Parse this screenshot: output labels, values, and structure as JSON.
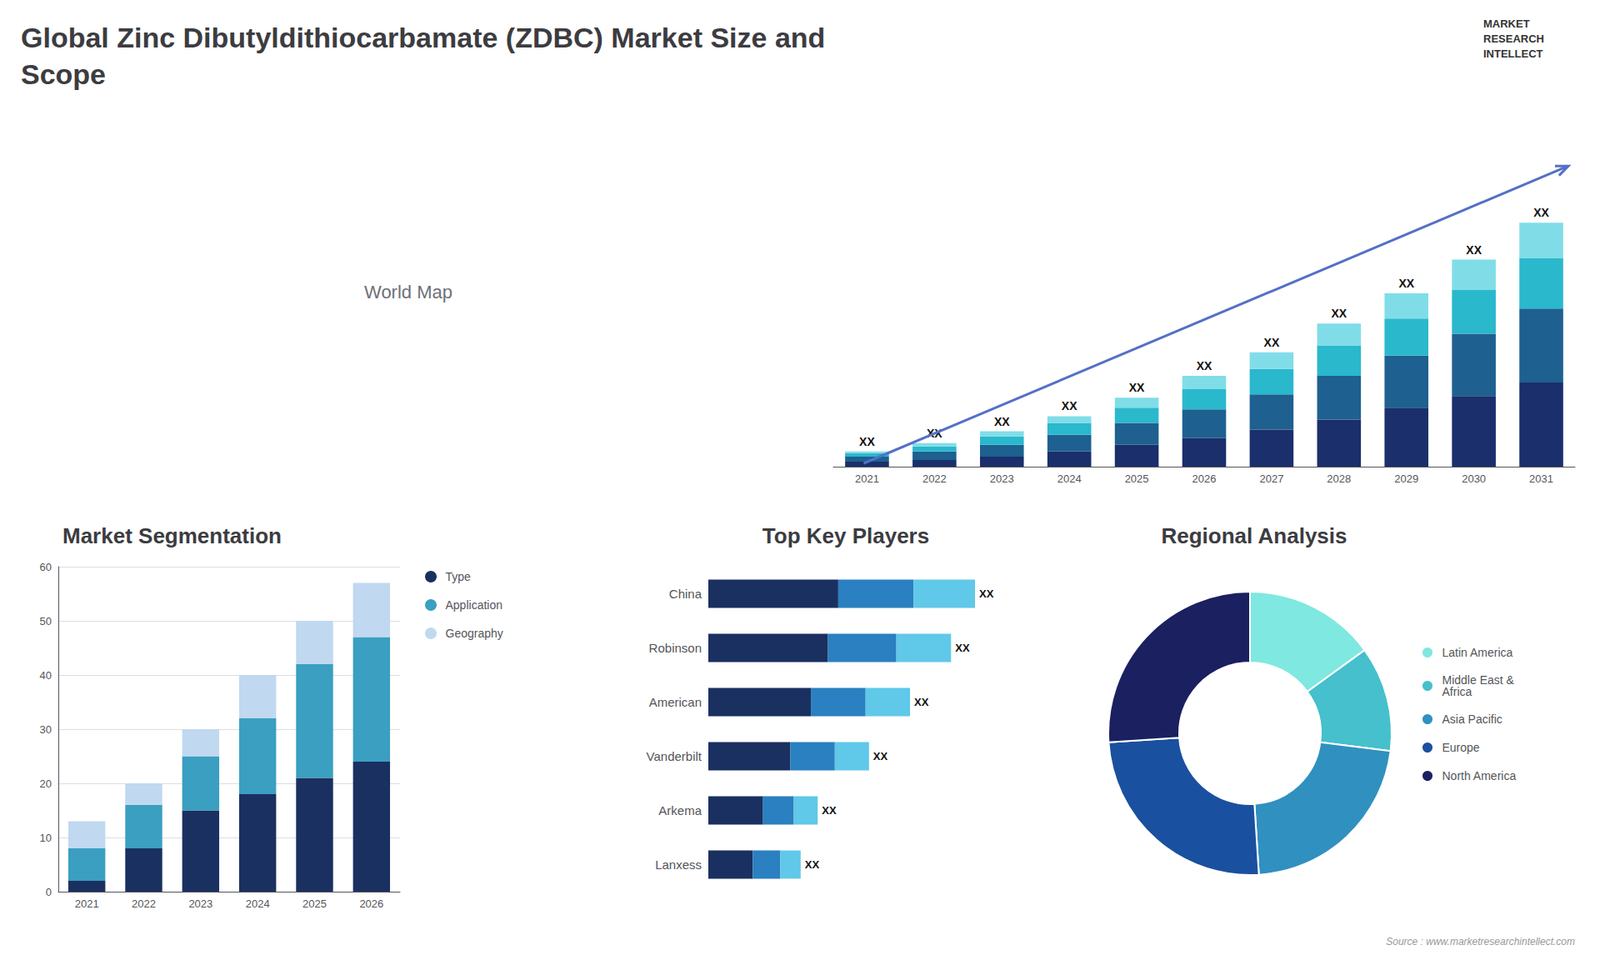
{
  "title": "Global Zinc Dibutyldithiocarbamate (ZDBC) Market Size and\nScope",
  "annotations": [
    "World Map",
    "MARKET",
    "RESEARCH",
    "INTELLECT",
    "Source : www.marketresearchintellect.com"
  ],
  "chart_data": [
    {
      "type": "bar",
      "stacked": true,
      "categories": [
        "2021",
        "2022",
        "2023",
        "2024",
        "2025",
        "2026",
        "2027",
        "2028",
        "2029",
        "2030",
        "2031"
      ],
      "series": [
        {
          "color": "#1a2f6b",
          "values": [
            3,
            4,
            6,
            9,
            13,
            17,
            22,
            28,
            35,
            42,
            50
          ]
        },
        {
          "color": "#1e6090",
          "values": [
            3,
            5,
            7,
            10,
            13,
            17,
            21,
            26,
            31,
            37,
            44
          ]
        },
        {
          "color": "#2ab8cc",
          "values": [
            2,
            3,
            5,
            7,
            9,
            12,
            15,
            18,
            22,
            26,
            30
          ]
        },
        {
          "color": "#80dde8",
          "values": [
            1,
            2,
            3,
            4,
            6,
            8,
            10,
            13,
            15,
            18,
            21
          ]
        }
      ],
      "ylim": [
        0,
        203
      ],
      "tick_labels": "x",
      "grid": false,
      "annotations": [
        {
          "text": "XX",
          "category": "2021"
        },
        {
          "text": "XX",
          "category": "2022"
        },
        {
          "text": "XX",
          "category": "2023"
        },
        {
          "text": "XX",
          "category": "2024"
        },
        {
          "text": "XX",
          "category": "2025"
        },
        {
          "text": "XX",
          "category": "2026"
        },
        {
          "text": "XX",
          "category": "2027"
        },
        {
          "text": "XX",
          "category": "2028"
        },
        {
          "text": "XX",
          "category": "2029"
        },
        {
          "text": "XX",
          "category": "2030"
        },
        {
          "text": "XX",
          "category": "2031"
        }
      ]
    },
    {
      "type": "bar",
      "stacked": true,
      "title": "Market Segmentation",
      "categories": [
        "2021",
        "2022",
        "2023",
        "2024",
        "2025",
        "2026"
      ],
      "series": [
        {
          "name": "Type",
          "color": "#1a3060",
          "values": [
            2,
            8,
            15,
            18,
            21,
            24
          ]
        },
        {
          "name": "Application",
          "color": "#3a9fc0",
          "values": [
            6,
            8,
            10,
            14,
            21,
            23
          ]
        },
        {
          "name": "Geography",
          "color": "#c0d8f0",
          "values": [
            5,
            4,
            5,
            8,
            8,
            10
          ]
        }
      ],
      "ylim": [
        0,
        60
      ],
      "yticks": [
        0,
        10,
        20,
        30,
        40,
        50,
        60
      ],
      "grid": true,
      "legend": "right"
    },
    {
      "type": "bar",
      "stacked": true,
      "orientation": "horizontal",
      "title": "Top Key Players",
      "categories": [
        "China",
        "Robinson",
        "American",
        "Vanderbilt",
        "Arkema",
        "Lanxess"
      ],
      "series": [
        {
          "color": "#1a3060",
          "values": [
            38,
            35,
            30,
            24,
            16,
            13
          ]
        },
        {
          "color": "#2a80c0",
          "values": [
            22,
            20,
            16,
            13,
            9,
            8
          ]
        },
        {
          "color": "#60c8e8",
          "values": [
            18,
            16,
            13,
            10,
            7,
            6
          ]
        }
      ],
      "xlim": [
        0,
        97.5
      ],
      "tick_labels": "y",
      "grid": false,
      "annotations": [
        {
          "text": "XX",
          "category": "China"
        },
        {
          "text": "XX",
          "category": "Robinson"
        },
        {
          "text": "XX",
          "category": "American"
        },
        {
          "text": "XX",
          "category": "Vanderbilt"
        },
        {
          "text": "XX",
          "category": "Arkema"
        },
        {
          "text": "XX",
          "category": "Lanxess"
        }
      ]
    },
    {
      "type": "pie",
      "title": "Regional Analysis",
      "categories": [
        "Latin America",
        "Middle East &\nAfrica",
        "Asia Pacific",
        "Europe",
        "North America"
      ],
      "values": [
        15,
        12,
        22,
        25,
        26
      ],
      "colors": [
        "#7fe8e0",
        "#45c0cc",
        "#3090c0",
        "#1a50a0",
        "#1a2060"
      ],
      "legend": "right"
    }
  ]
}
